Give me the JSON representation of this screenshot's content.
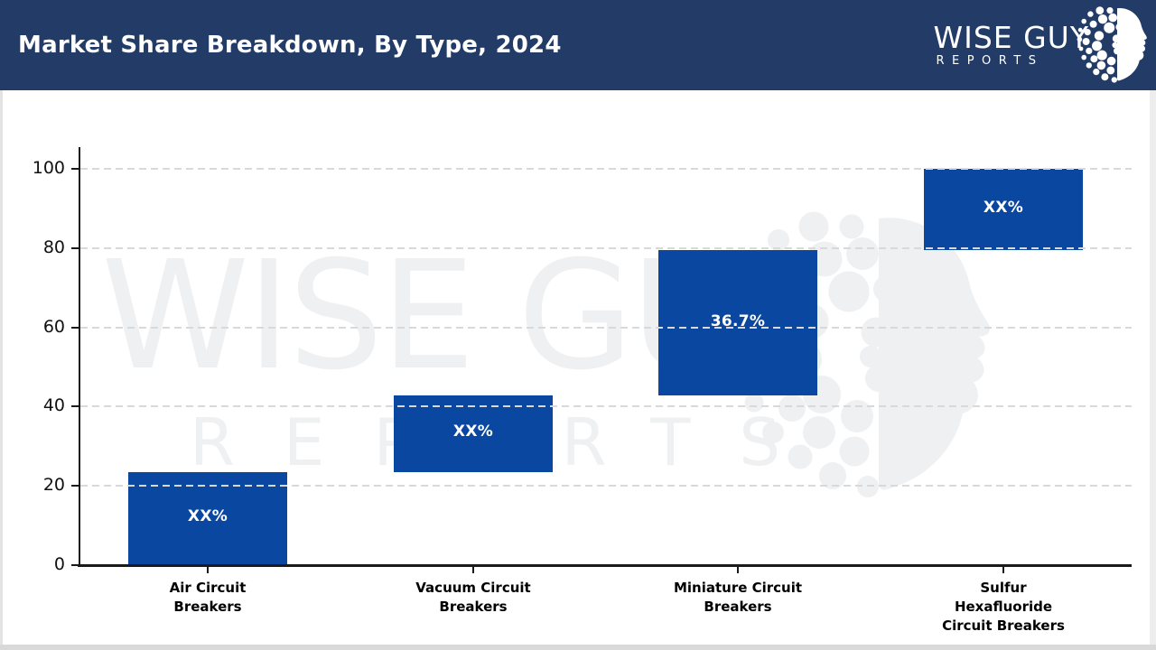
{
  "header": {
    "title": "Market Share Breakdown, By Type, 2024",
    "logo": {
      "wordmark": "WISE GUY",
      "subtitle": "REPORTS"
    }
  },
  "watermark": {
    "wordmark": "WISE GUY",
    "subtitle": "REPORTS"
  },
  "chart_data": {
    "type": "bar",
    "subtype": "waterfall",
    "title": "Market Share Breakdown, By Type, 2024",
    "categories": [
      "Air Circuit\nBreakers",
      "Vacuum Circuit\nBreakers",
      "Miniature Circuit\nBreakers",
      "Sulfur\nHexafluoride\nCircuit Breakers"
    ],
    "segments": [
      {
        "label": "XX%",
        "start": 0,
        "end": 23.5
      },
      {
        "label": "XX%",
        "start": 23.5,
        "end": 42.8
      },
      {
        "label": "36.7%",
        "start": 42.8,
        "end": 79.5
      },
      {
        "label": "XX%",
        "start": 79.5,
        "end": 100
      }
    ],
    "ylim": [
      0,
      100
    ],
    "yticks": [
      0,
      20,
      40,
      60,
      80,
      100
    ],
    "xlabel": "",
    "ylabel": "",
    "grid": "horizontal-dashed-over-bars",
    "legend": "none",
    "bar_color": "#0a47a0",
    "bar_label_color": "#ffffff",
    "header_color": "#223b67"
  }
}
